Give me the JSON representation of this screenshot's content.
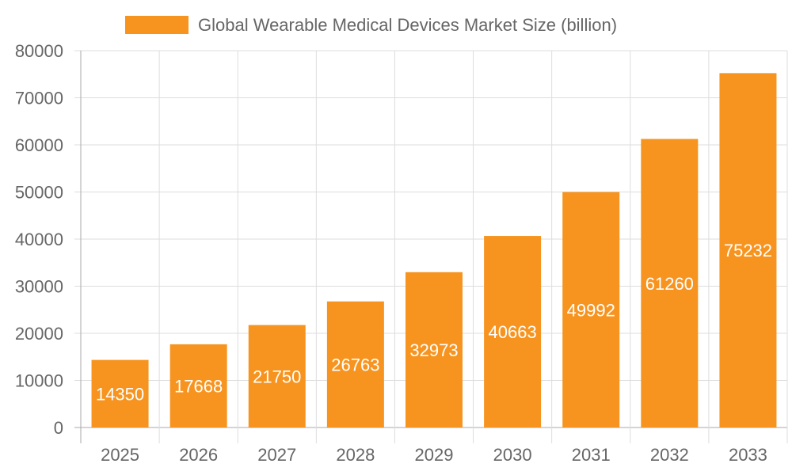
{
  "chart_data": {
    "type": "bar",
    "title": "",
    "xlabel": "",
    "ylabel": "",
    "categories": [
      "2025",
      "2026",
      "2027",
      "2028",
      "2029",
      "2030",
      "2031",
      "2032",
      "2033"
    ],
    "series": [
      {
        "name": "Global Wearable Medical Devices Market Size (billion)",
        "values": [
          14350,
          17668,
          21750,
          26763,
          32973,
          40663,
          49992,
          61260,
          75232
        ],
        "color": "#F7941F"
      }
    ],
    "ylim": [
      0,
      80000
    ],
    "yticks": [
      0,
      10000,
      20000,
      30000,
      40000,
      50000,
      60000,
      70000,
      80000
    ],
    "grid": true,
    "legend": "top-center",
    "data_labels": "inside-center",
    "colors": {
      "grid": "#DDDDDD",
      "axis": "#AAAAAA",
      "tick_text": "#666666",
      "label_text": "#FFFFFF"
    }
  }
}
